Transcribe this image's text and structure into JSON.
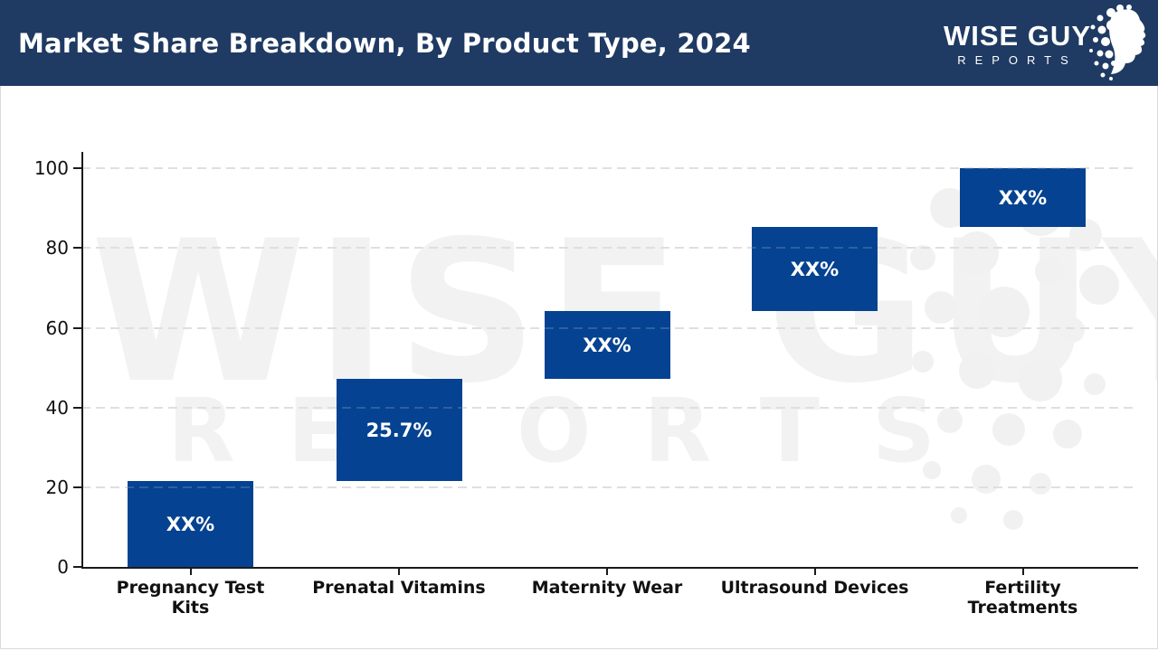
{
  "header": {
    "title": "Market Share Breakdown, By Product Type, 2024",
    "bg_color": "#1f3a63",
    "logo": {
      "line1": "WISE GUY",
      "line2": "REPORTS"
    }
  },
  "watermark": {
    "line1": "WISE GUY",
    "line2": "REPORTS",
    "color": "#f2f2f2"
  },
  "chart_data": {
    "type": "bar",
    "subtype": "waterfall",
    "title": "Market Share Breakdown, By Product Type, 2024",
    "xlabel": "",
    "ylabel": "",
    "ylim": [
      0,
      104
    ],
    "yticks": [
      0,
      20,
      40,
      60,
      80,
      100
    ],
    "grid": "dashed-horizontal",
    "legend": "none",
    "bar_color": "#054291",
    "bar_label_color": "#ffffff",
    "gridline_color": "#d9d9d9",
    "categories": [
      "Pregnancy Test\nKits",
      "Prenatal Vitamins",
      "Maternity Wear",
      "Ultrasound Devices",
      "Fertility\nTreatments"
    ],
    "segments": [
      {
        "category": "Pregnancy Test Kits",
        "label": "XX%",
        "start": 0,
        "end": 21.5,
        "value": 21.5
      },
      {
        "category": "Prenatal Vitamins",
        "label": "25.7%",
        "start": 21.5,
        "end": 47.2,
        "value": 25.7
      },
      {
        "category": "Maternity Wear",
        "label": "XX%",
        "start": 47.2,
        "end": 64.2,
        "value": 17.0
      },
      {
        "category": "Ultrasound Devices",
        "label": "XX%",
        "start": 64.2,
        "end": 85.3,
        "value": 21.1
      },
      {
        "category": "Fertility Treatments",
        "label": "XX%",
        "start": 85.3,
        "end": 100.0,
        "value": 14.7
      }
    ]
  }
}
